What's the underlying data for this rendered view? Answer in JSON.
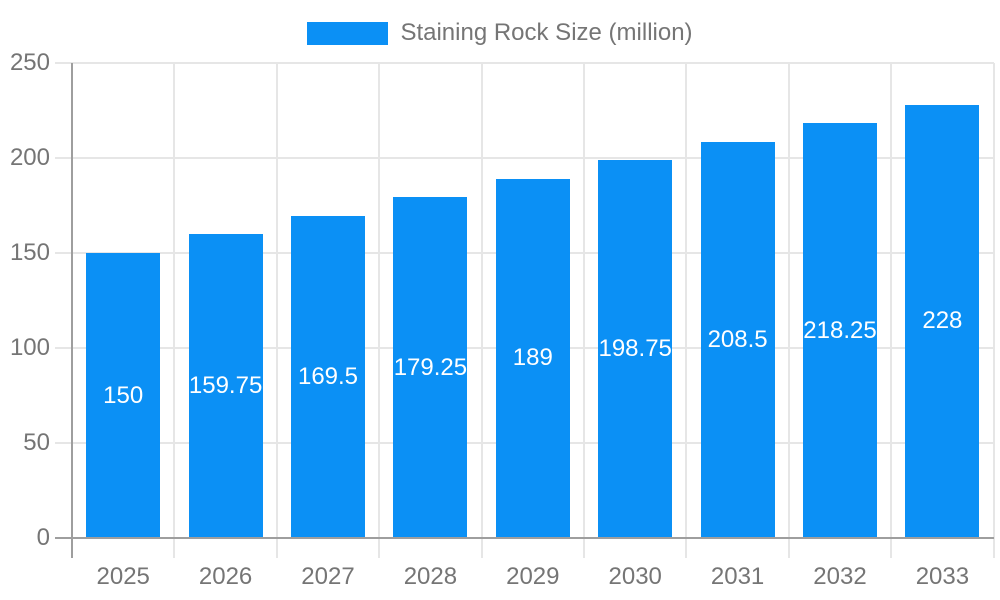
{
  "chart_data": {
    "type": "bar",
    "title": "",
    "legend_label": "Staining Rock Size (million)",
    "legend_position": "top",
    "categories": [
      "2025",
      "2026",
      "2027",
      "2028",
      "2029",
      "2030",
      "2031",
      "2032",
      "2033"
    ],
    "series": [
      {
        "name": "Staining Rock Size (million)",
        "values": [
          150,
          159.75,
          169.5,
          179.25,
          189,
          198.75,
          208.5,
          218.25,
          228
        ]
      }
    ],
    "value_labels": [
      "150",
      "159.75",
      "169.5",
      "179.25",
      "189",
      "198.75",
      "208.5",
      "218.25",
      "228"
    ],
    "xlabel": "",
    "ylabel": "",
    "ylim": [
      0,
      250
    ],
    "yticks": [
      0,
      50,
      100,
      150,
      200,
      250
    ],
    "grid": true,
    "colors": {
      "bar": "#0b90f5",
      "grid": "#e6e6e6",
      "axis": "#9e9e9e",
      "text": "#757575",
      "value_label": "#ffffff",
      "background": "#ffffff"
    }
  }
}
